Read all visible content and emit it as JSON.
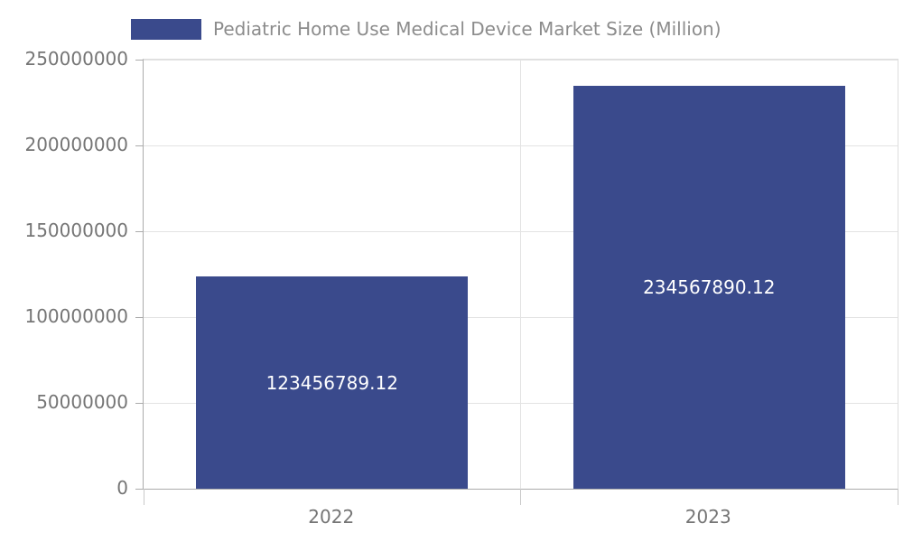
{
  "legend": {
    "label": "Pediatric Home Use Medical Device Market Size (Million)"
  },
  "colors": {
    "bar": "#3A4A8C",
    "legend_text": "#8c8c8c",
    "axis_text": "#757575",
    "axis_line": "#ababab",
    "plot_border": "#dedede",
    "gridline": "#e3e3e3",
    "value_label": "#ffffff",
    "background": "#ffffff"
  },
  "chart_data": {
    "type": "bar",
    "title": "Pediatric Home Use Medical Device Market Size (Million)",
    "series_name": "Pediatric Home Use Medical Device Market Size (Million)",
    "categories": [
      "2022",
      "2023"
    ],
    "values": [
      123456789.12,
      234567890.12
    ],
    "value_labels": [
      "123456789.12",
      "234567890.12"
    ],
    "value_label_position": "inside-center",
    "xlabel": "",
    "ylabel": "",
    "ylim": [
      0,
      250000000
    ],
    "y_ticks": [
      0,
      50000000,
      100000000,
      150000000,
      200000000,
      250000000
    ],
    "y_tick_labels": [
      "0",
      "50000000",
      "100000000",
      "150000000",
      "200000000",
      "250000000"
    ],
    "grid": true,
    "legend_position": "top-left",
    "bar_color": "#3A4A8C"
  }
}
